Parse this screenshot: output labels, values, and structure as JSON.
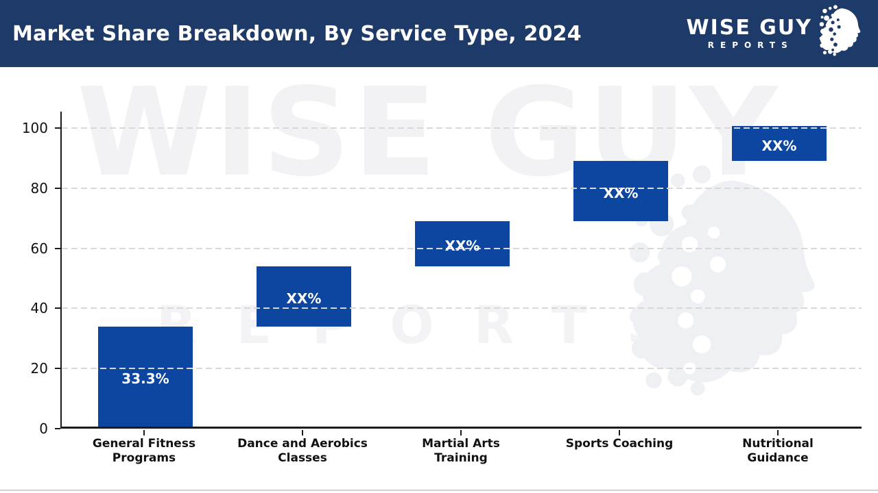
{
  "header": {
    "title": "Market Share Breakdown, By Service Type, 2024",
    "logo": {
      "name": "WISE GUY",
      "subtext": "REPORTS"
    }
  },
  "watermark": {
    "name": "WISE GUY",
    "subtext": "REPORTS"
  },
  "colors": {
    "header_bg": "#1e3a68",
    "bar": "#0c46a0",
    "grid": "#d8d8d8",
    "axis": "#1a1a1a",
    "bar_label_text": "#ffffff",
    "watermark": "#f2f2f5"
  },
  "chart_data": {
    "type": "bar",
    "subtype": "floating-waterfall",
    "title": "Market Share Breakdown, By Service Type, 2024",
    "categories": [
      "General Fitness\nPrograms",
      "Dance and Aerobics\nClasses",
      "Martial Arts\nTraining",
      "Sports Coaching",
      "Nutritional\nGuidance"
    ],
    "segments": [
      {
        "category": "General Fitness Programs",
        "start": 0,
        "end": 33.3,
        "label": "33.3%"
      },
      {
        "category": "Dance and Aerobics Classes",
        "start": 33.3,
        "end": 53.3,
        "label": "XX%"
      },
      {
        "category": "Martial Arts Training",
        "start": 53.3,
        "end": 68.3,
        "label": "XX%"
      },
      {
        "category": "Sports Coaching",
        "start": 68.3,
        "end": 88.3,
        "label": "XX%"
      },
      {
        "category": "Nutritional Guidance",
        "start": 88.3,
        "end": 100,
        "label": "XX%"
      }
    ],
    "xlabel": "",
    "ylabel": "",
    "ylim": [
      0,
      105
    ],
    "yticks": [
      0,
      20,
      40,
      60,
      80,
      100
    ],
    "grid": "horizontal-dashed-above-bars",
    "legend": "none"
  }
}
